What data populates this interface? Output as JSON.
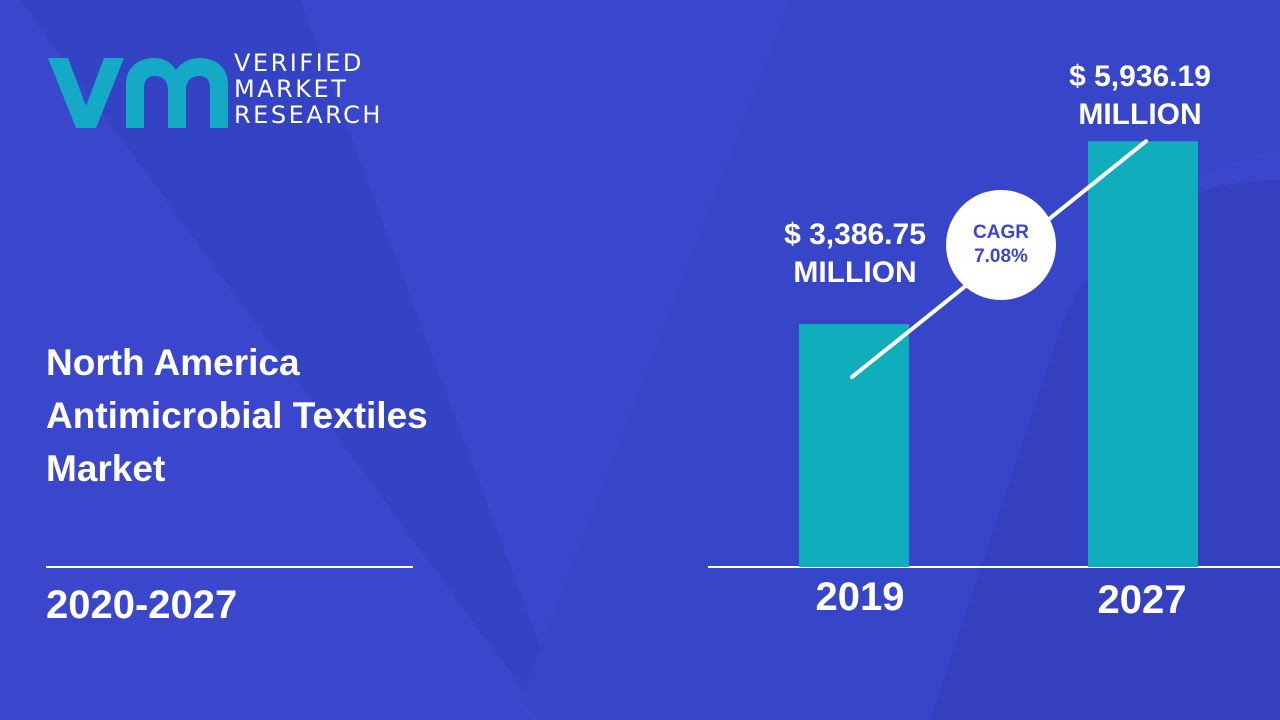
{
  "brand": {
    "line1": "VERIFIED",
    "line2": "MARKET",
    "line3": "RESEARCH",
    "logo_icon": "vmr-logo-icon",
    "logo_color": "#14a9c4"
  },
  "title": {
    "line1": "North America",
    "line2": "Antimicrobial Textiles",
    "line3": "Market"
  },
  "period": "2020-2027",
  "colors": {
    "background": "#3a47cc",
    "bar": "#10aebd",
    "text": "#ffffff"
  },
  "chart_data": {
    "type": "bar",
    "categories": [
      "2019",
      "2027"
    ],
    "values": [
      3386.75,
      5936.19
    ],
    "value_labels": [
      {
        "line1": "$ 3,386.75",
        "line2": "MILLION"
      },
      {
        "line1": "$ 5,936.19",
        "line2": "MILLION"
      }
    ],
    "annotation": {
      "line1": "CAGR",
      "line2": "7.08%"
    },
    "ylim": [
      0,
      6400
    ],
    "grid": false,
    "legend": "none"
  }
}
